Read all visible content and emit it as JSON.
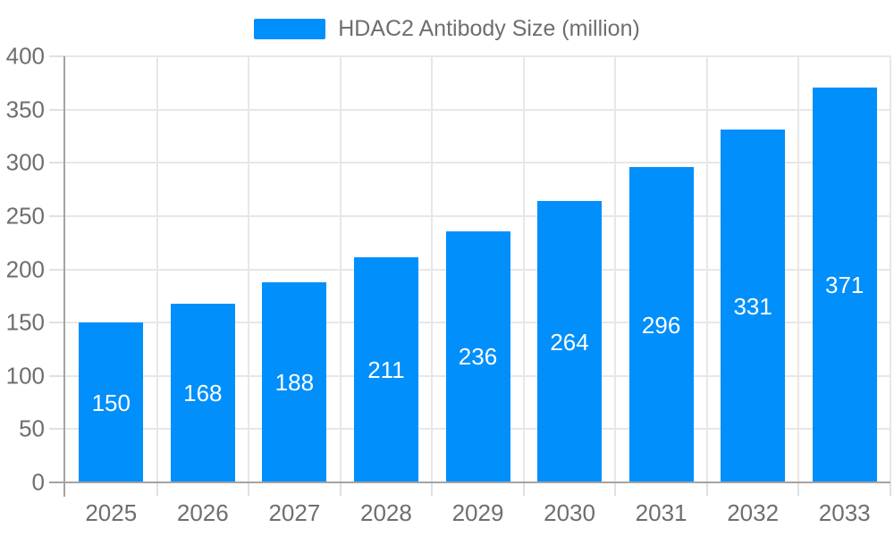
{
  "legend": {
    "label": "HDAC2 Antibody Size (million)"
  },
  "chart_data": {
    "type": "bar",
    "title": "HDAC2 Antibody Size (million)",
    "series_name": "HDAC2 Antibody Size (million)",
    "categories": [
      "2025",
      "2026",
      "2027",
      "2028",
      "2029",
      "2030",
      "2031",
      "2032",
      "2033"
    ],
    "values": [
      150,
      168,
      188,
      211,
      236,
      264,
      296,
      331,
      371
    ],
    "xlabel": "",
    "ylabel": "",
    "ylim": [
      0,
      400
    ],
    "yticks": [
      0,
      50,
      100,
      150,
      200,
      250,
      300,
      350,
      400
    ],
    "grid": true,
    "legend_position": "top",
    "colors": {
      "bar": "#008FFB",
      "bar_value_text": "#FFFFFF",
      "axis_text": "#6E6E71",
      "gridline": "#E7E7E7",
      "tick": "#E0E0E0",
      "axis_line": "#A3A3A3",
      "background": "#FFFFFF"
    }
  }
}
